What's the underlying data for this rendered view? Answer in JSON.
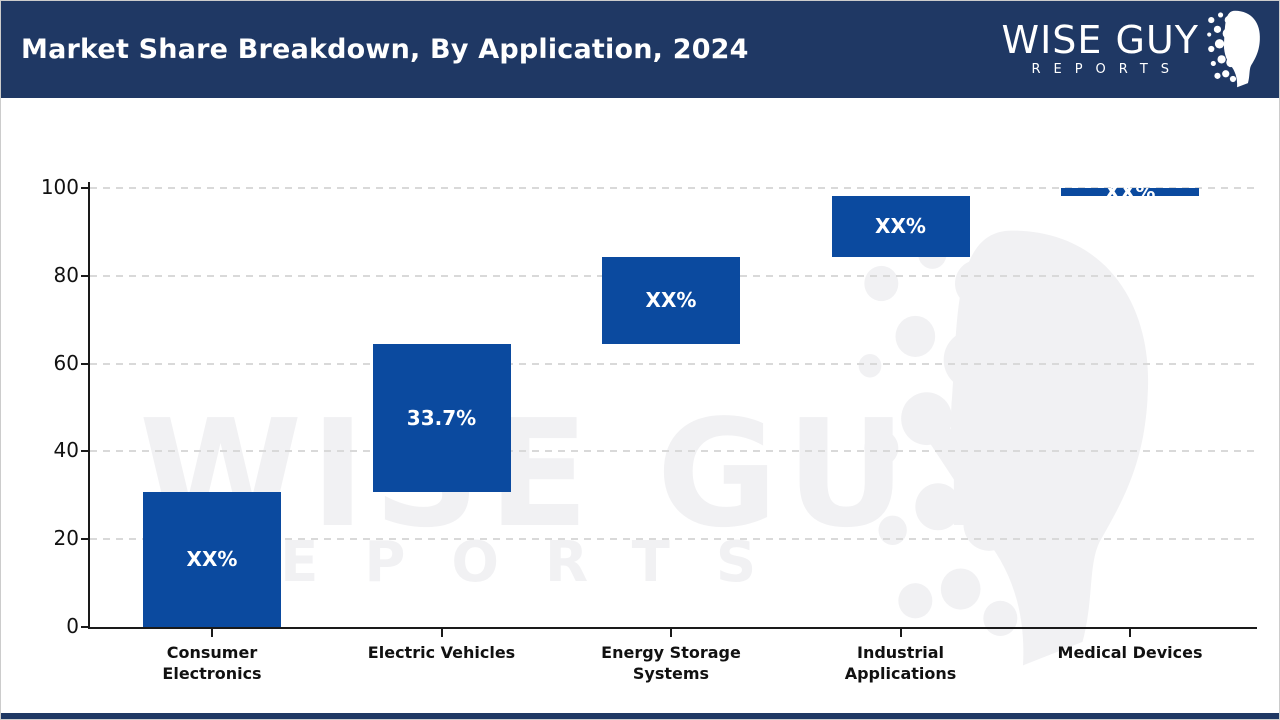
{
  "header": {
    "title": "Market Share Breakdown, By Application, 2024",
    "logo": {
      "line1": "WISE GUY",
      "line2": "REPORTS"
    }
  },
  "watermark": {
    "line1": "WISE GUY",
    "line2": "REPORTS"
  },
  "colors": {
    "header_bg": "#1f3864",
    "footer_bg": "#1f3864",
    "bar": "#0b4a9f",
    "grid": "#d9d9d9",
    "axis": "#1a1a1a",
    "watermark": "#f1f1f3",
    "bar_label": "#ffffff"
  },
  "chart_data": {
    "type": "bar",
    "subtype": "waterfall",
    "title": "Market Share Breakdown, By Application, 2024",
    "categories": [
      "Consumer Electronics",
      "Electric Vehicles",
      "Energy Storage Systems",
      "Industrial Applications",
      "Medical Devices"
    ],
    "segments": [
      {
        "category": "Consumer Electronics",
        "start": 0,
        "end": 30.8,
        "value_label": "XX%"
      },
      {
        "category": "Electric Vehicles",
        "start": 30.8,
        "end": 64.5,
        "value_label": "33.7%"
      },
      {
        "category": "Energy Storage Systems",
        "start": 64.5,
        "end": 84.3,
        "value_label": "XX%"
      },
      {
        "category": "Industrial Applications",
        "start": 84.3,
        "end": 98.2,
        "value_label": "XX%"
      },
      {
        "category": "Medical Devices",
        "start": 98.2,
        "end": 100,
        "value_label": "XX%"
      }
    ],
    "yticks": [
      0,
      20,
      40,
      60,
      80,
      100
    ],
    "ylim": [
      0,
      103
    ],
    "ylabel": "",
    "xlabel": "",
    "grid": "horizontal-dashed",
    "legend": "none"
  }
}
